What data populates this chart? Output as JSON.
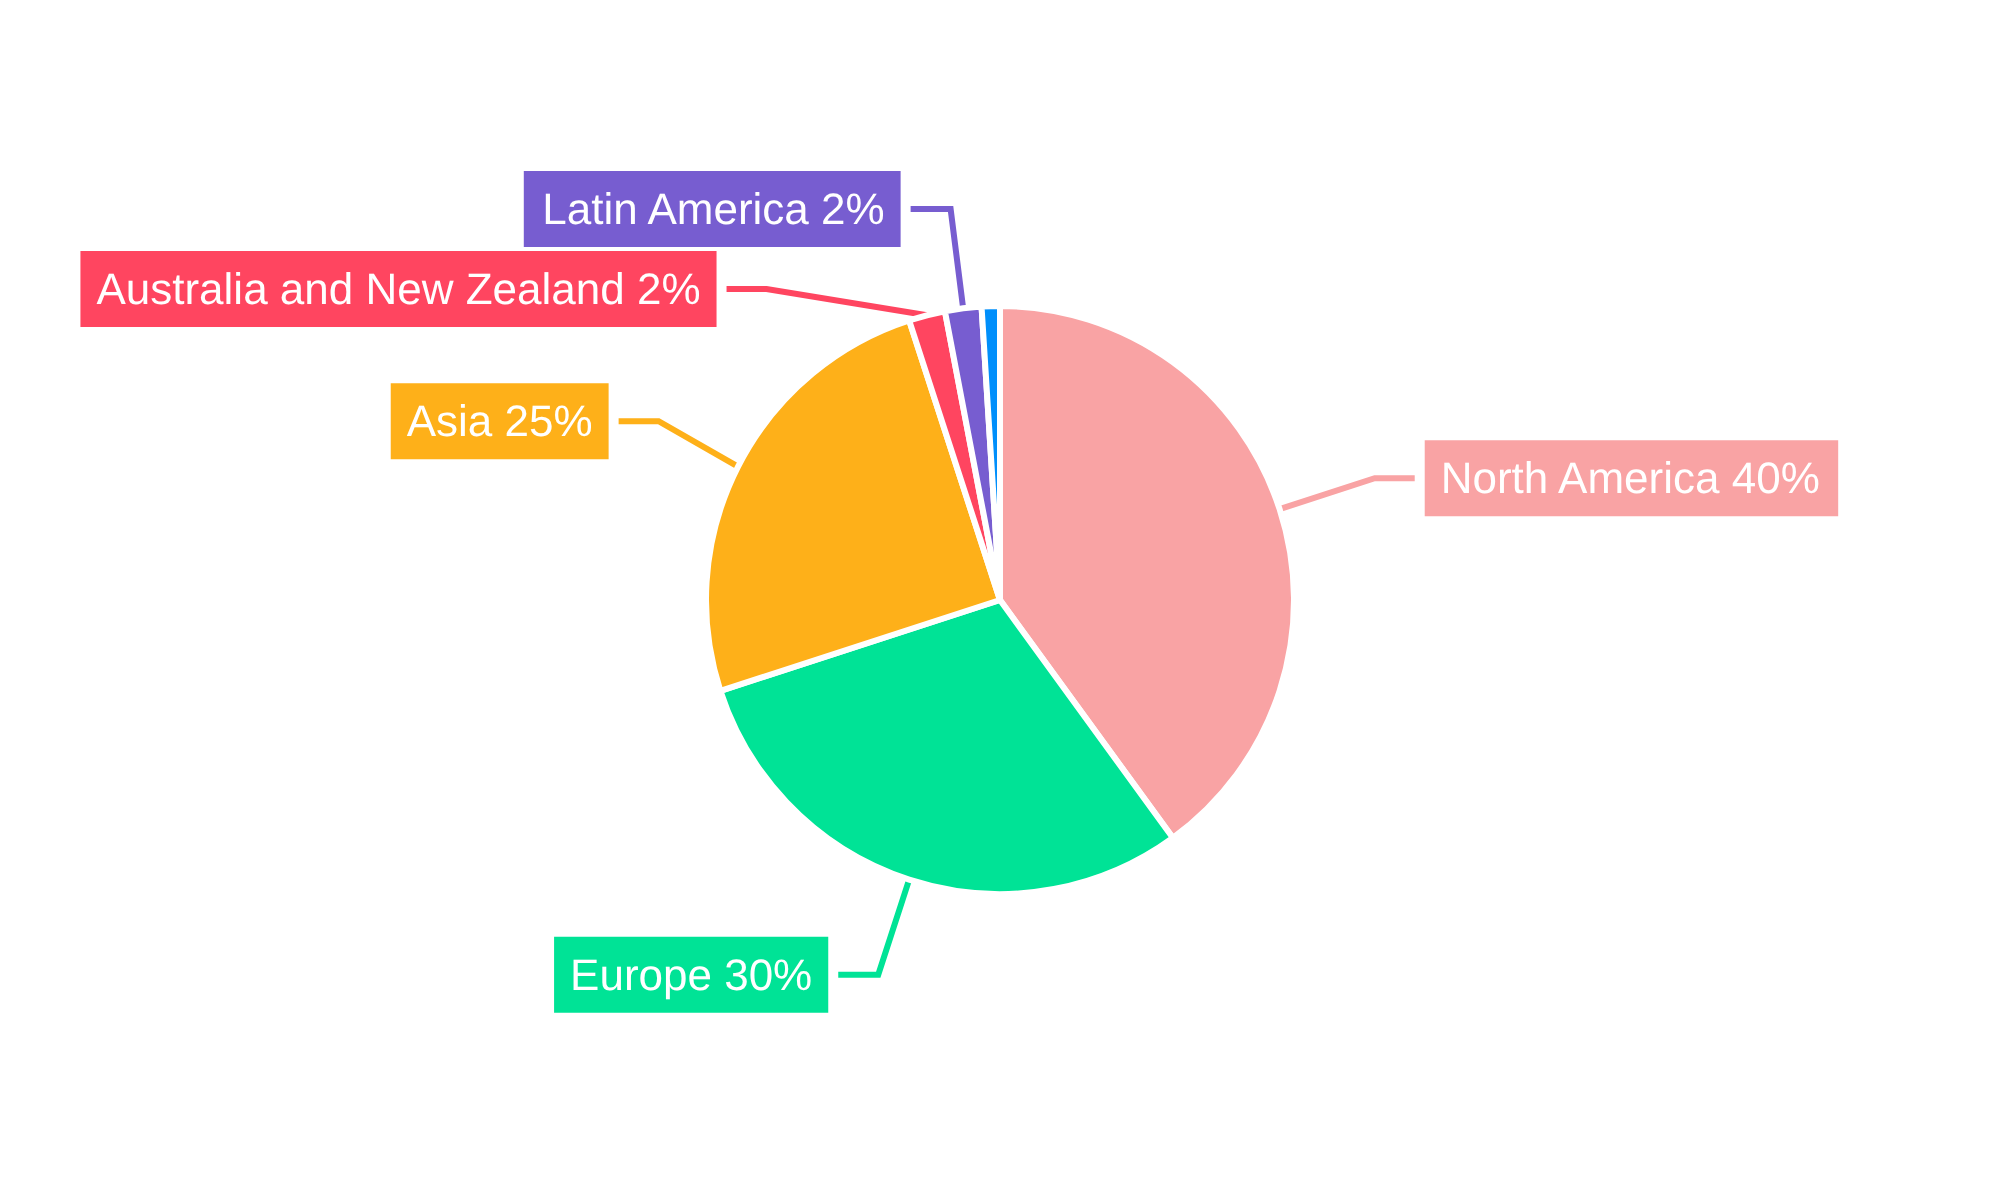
{
  "chart_data": {
    "type": "pie",
    "categories": [
      "North America",
      "Europe",
      "Asia",
      "Australia and New Zealand",
      "Latin America",
      null
    ],
    "values": [
      40,
      30,
      25,
      2,
      2,
      1
    ],
    "value_labels": [
      "40%",
      "30%",
      "25%",
      "2%",
      "2%",
      null
    ],
    "colors": [
      "#f9a3a4",
      "#00e396",
      "#feb019",
      "#ff4560",
      "#775dd0",
      "#008ffb"
    ],
    "legend": false
  }
}
